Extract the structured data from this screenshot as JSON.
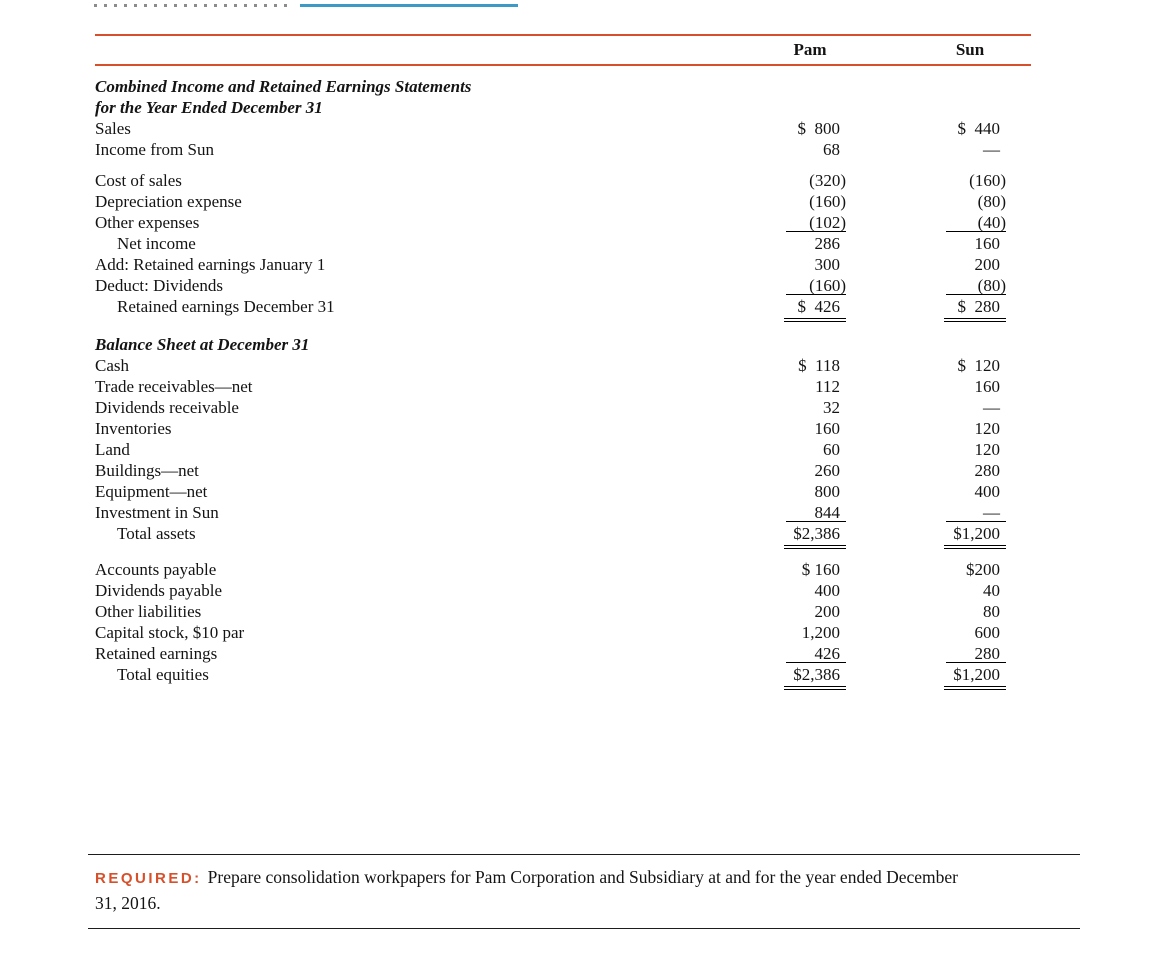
{
  "page": {
    "background": "#ffffff",
    "accent_orange": "#d6512b",
    "rule_dark": "#1d1d1b",
    "link_blue": "#3d9ac6"
  },
  "table": {
    "columns": [
      "Pam",
      "Sun"
    ],
    "sections": [
      {
        "heading": "Combined Income and Retained Earnings Statements for the Year Ended December 31",
        "rows": [
          {
            "label": "Sales",
            "pam": "$  800",
            "sun": "$  440"
          },
          {
            "label": "Income from Sun",
            "pam": "68",
            "sun": "—",
            "gap_after": true
          },
          {
            "label": "Cost of sales",
            "pam": "(320)",
            "sun": "(160)"
          },
          {
            "label": "Depreciation expense",
            "pam": "(160)",
            "sun": "(80)"
          },
          {
            "label": "Other expenses",
            "pam": "(102)",
            "sun": "(40)",
            "underline": "single"
          },
          {
            "label": "Net income",
            "indent": 1,
            "pam": "286",
            "sun": "160"
          },
          {
            "label": "Add: Retained earnings January 1",
            "pam": "300",
            "sun": "200"
          },
          {
            "label": "Deduct: Dividends",
            "pam": "(160)",
            "sun": "(80)",
            "underline": "single"
          },
          {
            "label": "Retained earnings December 31",
            "indent": 1,
            "pam": "$  426",
            "sun": "$  280",
            "underline": "double"
          }
        ]
      },
      {
        "heading": "Balance Sheet at December 31",
        "rows": [
          {
            "label": "Cash",
            "pam": "$  118",
            "sun": "$  120"
          },
          {
            "label": "Trade receivables—net",
            "pam": "112",
            "sun": "160"
          },
          {
            "label": "Dividends receivable",
            "pam": "32",
            "sun": "—"
          },
          {
            "label": "Inventories",
            "pam": "160",
            "sun": "120"
          },
          {
            "label": "Land",
            "pam": "60",
            "sun": "120"
          },
          {
            "label": "Buildings—net",
            "pam": "260",
            "sun": "280"
          },
          {
            "label": "Equipment—net",
            "pam": "800",
            "sun": "400"
          },
          {
            "label": "Investment in Sun",
            "pam": "844",
            "sun": "—",
            "underline": "single"
          },
          {
            "label": "Total assets",
            "indent": 1,
            "pam": "$2,386",
            "sun": "$1,200",
            "underline": "double",
            "gap_after": true
          },
          {
            "label": "Accounts payable",
            "pam": "$ 160",
            "sun": "$200"
          },
          {
            "label": "Dividends payable",
            "pam": "400",
            "sun": "40"
          },
          {
            "label": "Other liabilities",
            "pam": "200",
            "sun": "80"
          },
          {
            "label": "Capital stock, $10 par",
            "pam": "1,200",
            "sun": "600"
          },
          {
            "label": "Retained earnings",
            "pam": "426",
            "sun": "280",
            "underline": "single"
          },
          {
            "label": "Total equities",
            "indent": 1,
            "pam": "$2,386",
            "sun": "$1,200",
            "underline": "double"
          }
        ]
      }
    ]
  },
  "required": {
    "label": "REQUIRED:",
    "text": "Prepare consolidation workpapers for Pam Corporation and Subsidiary at and for the year ended December 31, 2016."
  }
}
